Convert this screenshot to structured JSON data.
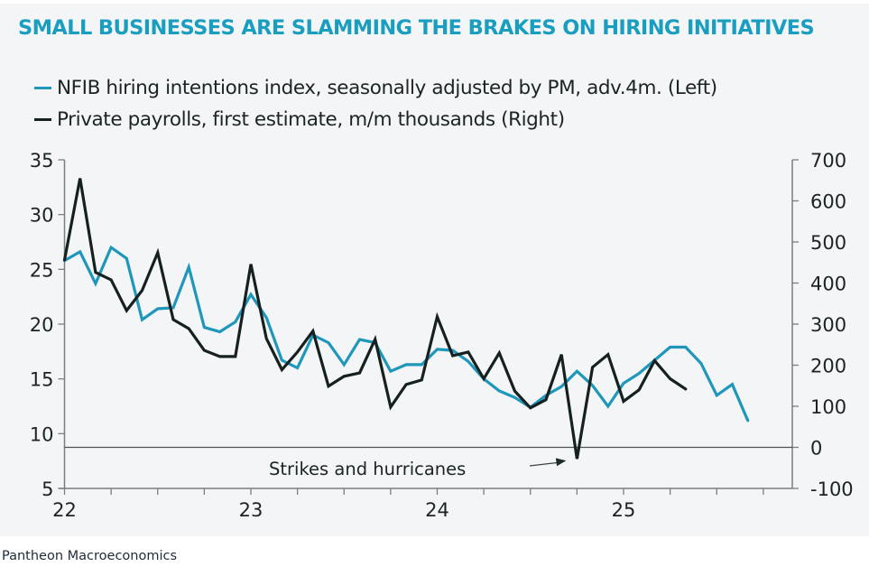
{
  "title": "SMALL BUSINESSES ARE SLAMMING THE BRAKES ON HIRING INITIATIVES",
  "footer": "Pantheon Macroeconomics",
  "colors": {
    "title": "#1a9ec0",
    "nfib": "#1f97bb",
    "payrolls": "#15201f",
    "axis": "#7a7f80",
    "panel": "#f4f5f7"
  },
  "chart_data": {
    "type": "line",
    "title": "SMALL BUSINESSES ARE SLAMMING THE BRAKES ON HIRING INITIATIVES",
    "legend": [
      "NFIB hiring intentions index, seasonally adjusted by PM, adv.4m. (Left)",
      "Private payrolls, first estimate, m/m thousands (Right)"
    ],
    "legend_position": "top-left",
    "x_start": "2022-01",
    "x_frequency": "monthly",
    "x_ticks": [
      "22",
      "23",
      "24",
      "25"
    ],
    "x_range_years": [
      2022,
      2025.95
    ],
    "y_left": {
      "range": [
        5,
        35
      ],
      "ticks": [
        "35",
        "30",
        "25",
        "20",
        "15",
        "10",
        "5"
      ],
      "tick_values": [
        35,
        30,
        25,
        20,
        15,
        10,
        5
      ]
    },
    "y_right": {
      "range": [
        -100,
        700
      ],
      "ticks": [
        "700",
        "600",
        "500",
        "400",
        "300",
        "200",
        "100",
        "0",
        "-100"
      ],
      "tick_values": [
        700,
        600,
        500,
        400,
        300,
        200,
        100,
        0,
        -100
      ]
    },
    "grid": false,
    "series": [
      {
        "name": "NFIB hiring intentions index, seasonally adjusted by PM, adv.4m. (Left)",
        "axis": "left",
        "values": [
          25.8,
          26.6,
          23.7,
          27.0,
          26.0,
          20.4,
          21.4,
          21.5,
          25.2,
          19.7,
          19.3,
          20.2,
          22.7,
          20.6,
          16.7,
          16.0,
          19.0,
          18.3,
          16.3,
          18.6,
          18.3,
          15.7,
          16.3,
          16.3,
          17.7,
          17.6,
          16.6,
          15.0,
          13.9,
          13.3,
          12.4,
          13.5,
          14.3,
          15.7,
          14.4,
          12.5,
          14.6,
          15.5,
          16.7,
          17.9,
          17.9,
          16.4,
          13.5,
          14.5,
          11.2
        ]
      },
      {
        "name": "Private payrolls, first estimate, m/m thousands (Right)",
        "axis": "right",
        "values": [
          456,
          655,
          426,
          408,
          333,
          382,
          474,
          311,
          289,
          236,
          221,
          221,
          446,
          265,
          189,
          232,
          283,
          149,
          173,
          181,
          263,
          98,
          153,
          164,
          318,
          223,
          232,
          167,
          230,
          137,
          96,
          116,
          226,
          -28,
          195,
          226,
          112,
          140,
          211,
          167,
          142
        ]
      }
    ],
    "annotations": [
      {
        "text": "Strikes and hurricanes",
        "points_to": {
          "series": 1,
          "index": 33
        }
      }
    ]
  }
}
